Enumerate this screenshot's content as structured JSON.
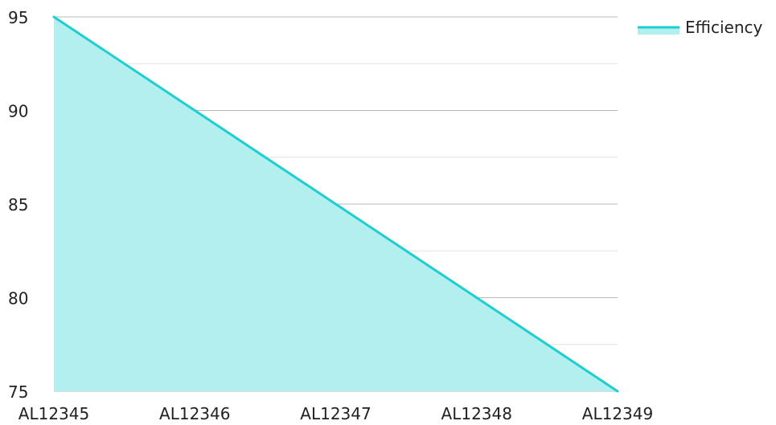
{
  "chart_data": {
    "type": "area",
    "categories": [
      "AL12345",
      "AL12346",
      "AL12347",
      "AL12348",
      "AL12349"
    ],
    "series": [
      {
        "name": "Efficiency",
        "values": [
          95,
          90,
          85,
          80,
          75
        ]
      }
    ],
    "title": "",
    "xlabel": "",
    "ylabel": "",
    "ylim": [
      75,
      95
    ],
    "yticks": [
      75,
      80,
      85,
      90,
      95
    ],
    "grid": true,
    "legend_position": "top-right",
    "colors": {
      "line": "#1ecfcf",
      "fill": "#b2efee",
      "major_grid": "#b8b8b8",
      "minor_grid": "#e2e2e2"
    }
  }
}
